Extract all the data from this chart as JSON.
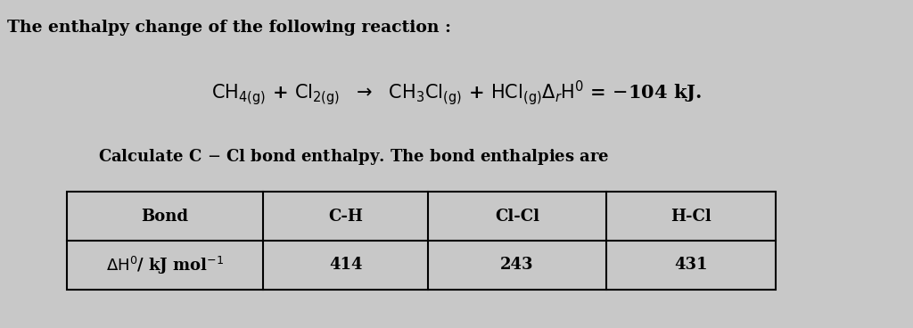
{
  "bg_color": "#c8c8c8",
  "title_text": "The enthalpy change of the following reaction :",
  "calc_line": "Calculate C − Cl bond enthalpy. The bond enthalpies are",
  "table_headers": [
    "Bond",
    "C-H",
    "Cl-Cl",
    "H-Cl"
  ],
  "table_row_label": "ΔH°/ kJ mol⁻¹",
  "table_values": [
    "414",
    "243",
    "431"
  ],
  "font_size_title": 13.5,
  "font_size_reaction": 15,
  "font_size_calc": 13,
  "font_size_table": 13
}
